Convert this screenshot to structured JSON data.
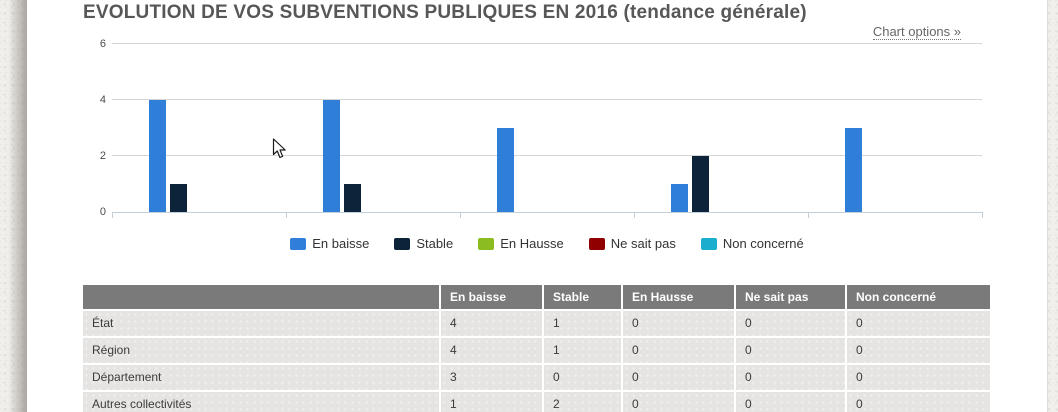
{
  "header": {
    "title": "EVOLUTION DE VOS SUBVENTIONS PUBLIQUES EN 2016 (tendance générale)",
    "chart_options_label": "Chart options »"
  },
  "chart_data": {
    "type": "bar",
    "title": "EVOLUTION DE VOS SUBVENTIONS PUBLIQUES EN 2016 (tendance générale)",
    "categories": [
      "État",
      "Région",
      "Département",
      "Autres collectivités",
      ""
    ],
    "series": [
      {
        "name": "En baisse",
        "color": "#2f7ed8",
        "values": [
          4,
          4,
          3,
          1,
          3
        ]
      },
      {
        "name": "Stable",
        "color": "#0d233a",
        "values": [
          1,
          1,
          0,
          2,
          0
        ]
      },
      {
        "name": "En Hausse",
        "color": "#8bbc21",
        "values": [
          0,
          0,
          0,
          0,
          0
        ]
      },
      {
        "name": "Ne sait pas",
        "color": "#910000",
        "values": [
          0,
          0,
          0,
          0,
          0
        ]
      },
      {
        "name": "Non concerné",
        "color": "#1aadce",
        "values": [
          0,
          0,
          0,
          0,
          0
        ]
      }
    ],
    "xlabel": "",
    "ylabel": "",
    "ylim": [
      0,
      6
    ],
    "yticks": [
      0,
      2,
      4,
      6
    ],
    "grid": true,
    "legend_position": "bottom"
  },
  "table": {
    "headers": [
      "",
      "En baisse",
      "Stable",
      "En Hausse",
      "Ne sait pas",
      "Non concerné"
    ],
    "rows": [
      {
        "label": "État",
        "values": [
          "4",
          "1",
          "0",
          "0",
          "0"
        ]
      },
      {
        "label": "Région",
        "values": [
          "4",
          "1",
          "0",
          "0",
          "0"
        ]
      },
      {
        "label": "Département",
        "values": [
          "3",
          "0",
          "0",
          "0",
          "0"
        ]
      },
      {
        "label": "Autres collectivités",
        "values": [
          "1",
          "2",
          "0",
          "0",
          "0"
        ]
      }
    ],
    "header_bg": "#7a7a7a",
    "cell_bg": "#e5e4e2"
  }
}
